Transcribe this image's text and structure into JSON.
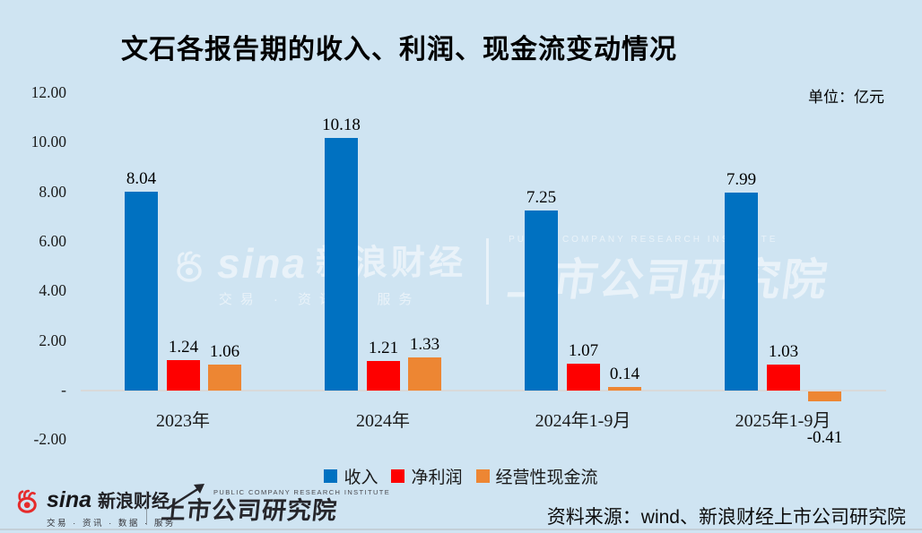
{
  "chart_data": {
    "type": "bar",
    "title": "文石各报告期的收入、利润、现金流变动情况",
    "unit_label": "单位：亿元",
    "categories": [
      "2023年",
      "2024年",
      "2024年1-9月",
      "2025年1-9月"
    ],
    "series": [
      {
        "name": "收入",
        "color": "#0071c1",
        "values": [
          8.04,
          10.18,
          7.25,
          7.99
        ]
      },
      {
        "name": "净利润",
        "color": "#fe0000",
        "values": [
          1.24,
          1.21,
          1.07,
          1.03
        ]
      },
      {
        "name": "经营性现金流",
        "color": "#ed8633",
        "values": [
          1.06,
          1.33,
          0.14,
          -0.41
        ]
      }
    ],
    "y_axis": {
      "ticks": [
        {
          "label": "12.00",
          "value": 12
        },
        {
          "label": "10.00",
          "value": 10
        },
        {
          "label": "8.00",
          "value": 8
        },
        {
          "label": "6.00",
          "value": 6
        },
        {
          "label": "4.00",
          "value": 4
        },
        {
          "label": "2.00",
          "value": 2
        },
        {
          "label": "-",
          "value": 0
        },
        {
          "label": "-2.00",
          "value": -2
        }
      ],
      "ylim": [
        -2,
        12
      ]
    },
    "grid": false,
    "legend_position": "bottom",
    "xlabel": "",
    "ylabel": ""
  },
  "colors": {
    "background": "#cfe4f2",
    "axis_line": "#d9d9d9",
    "revenue_blue": "#0071c1",
    "profit_red": "#fe0000",
    "cashflow_orange": "#ed8633"
  },
  "watermark": {
    "sina_word": "sina",
    "brand": "新浪财经",
    "tagline": "交易 · 资讯 · 服务",
    "institute_en": "PUBLIC COMPANY RESEARCH INSTITUTE",
    "institute_cn": "上市公司研究院"
  },
  "footer": {
    "sina_word": "sina",
    "sina_brand": "新浪财经",
    "sina_tagline": "交易 · 资讯 · 数据 · 服务",
    "institute_en": "PUBLIC COMPANY RESEARCH INSTITUTE",
    "institute_cn": "上市公司研究院",
    "source": "资料来源：wind、新浪财经上市公司研究院"
  }
}
